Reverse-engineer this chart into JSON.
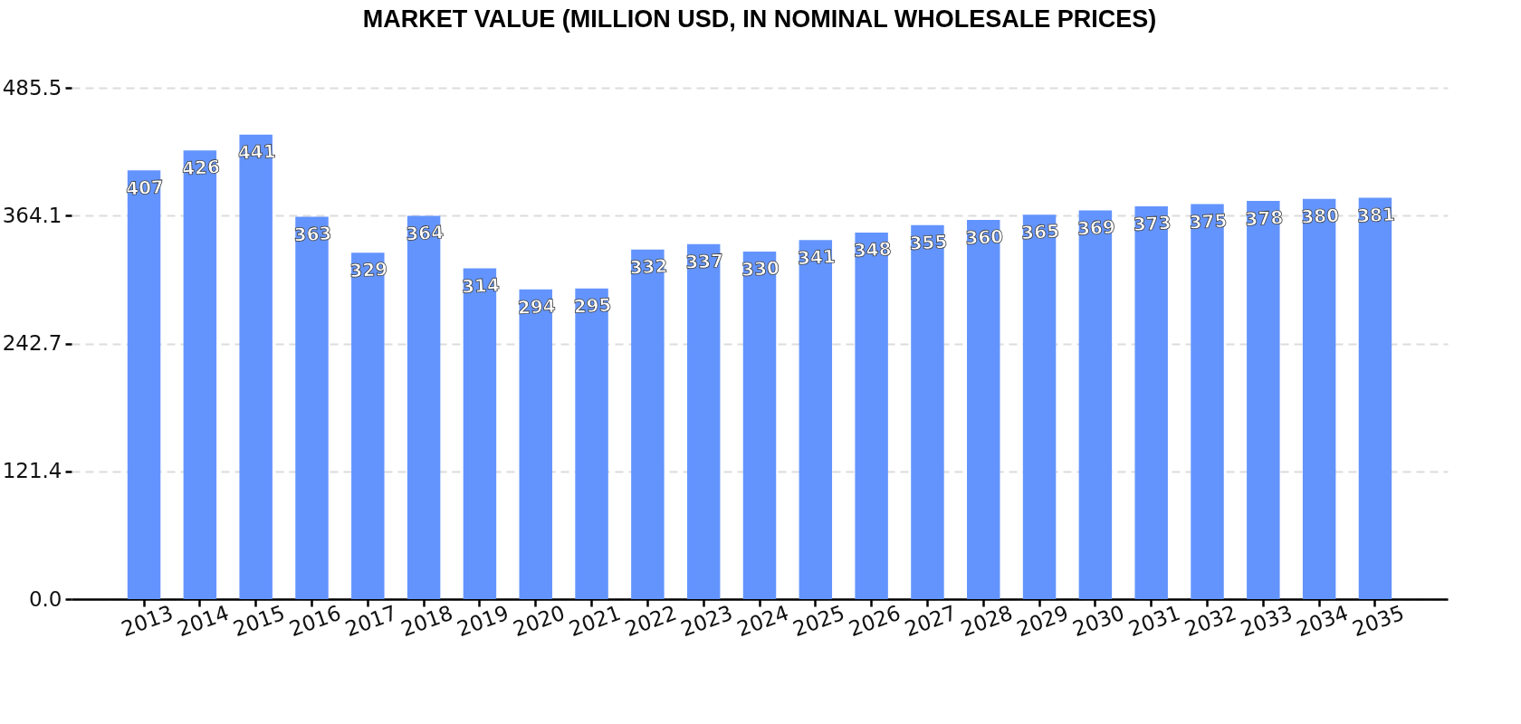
{
  "chart_data": {
    "type": "bar",
    "title": "MARKET VALUE (MILLION USD, IN NOMINAL WHOLESALE PRICES)",
    "categories": [
      "2013",
      "2014",
      "2015",
      "2016",
      "2017",
      "2018",
      "2019",
      "2020",
      "2021",
      "2022",
      "2023",
      "2024",
      "2025",
      "2026",
      "2027",
      "2028",
      "2029",
      "2030",
      "2031",
      "2032",
      "2033",
      "2034",
      "2035"
    ],
    "values": [
      407,
      426,
      441,
      363,
      329,
      364,
      314,
      294,
      295,
      332,
      337,
      330,
      341,
      348,
      355,
      360,
      365,
      369,
      373,
      375,
      378,
      380,
      381
    ],
    "color": "#6394fd",
    "ylim": [
      0,
      485.5
    ],
    "yticks": [
      {
        "value": 0,
        "label": "0.0"
      },
      121.4,
      242.7,
      364.1,
      485.5
    ],
    "grid": "y",
    "data_labels": true
  }
}
